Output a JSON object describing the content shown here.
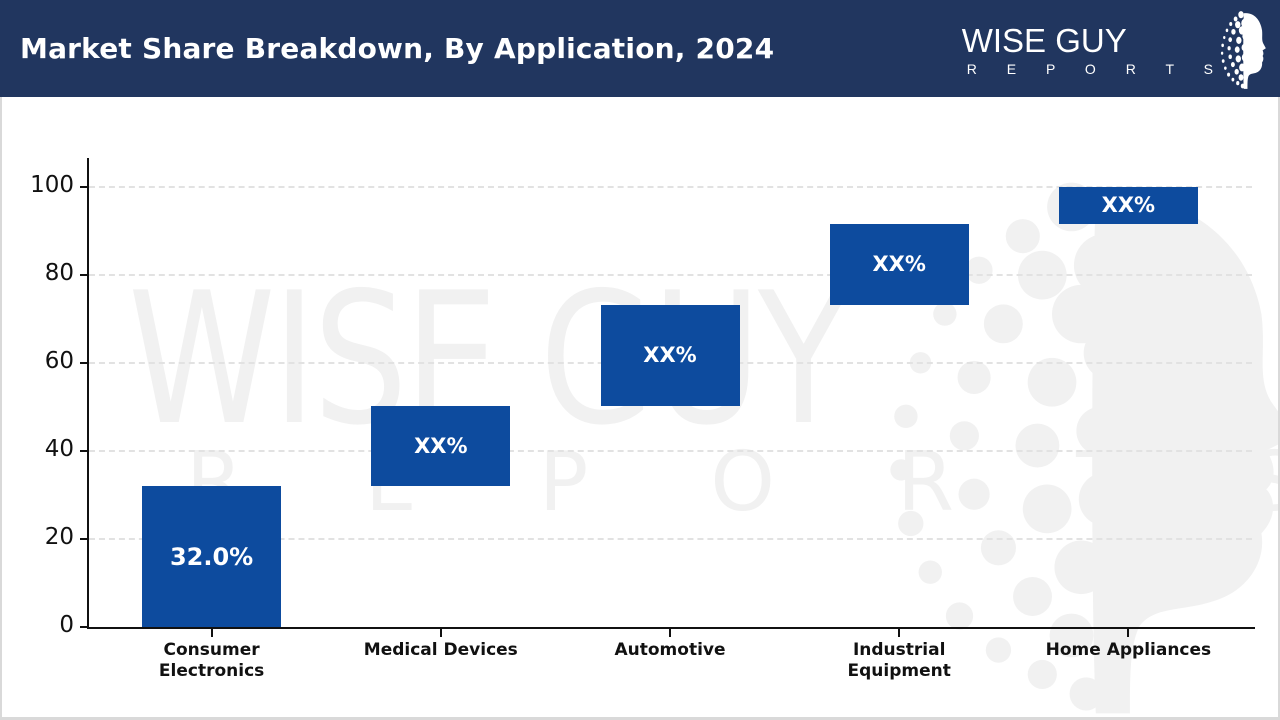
{
  "header": {
    "title": "Market Share Breakdown, By Application, 2024",
    "logo": {
      "wordmark": "WISE GUY",
      "reports": "R E P O R T S"
    }
  },
  "watermark": {
    "wordmark": "WISE GUY",
    "reports": "R E P O R T S"
  },
  "colors": {
    "header_bg": "#21365F",
    "bar_blue": "#0D4B9E",
    "grid": "#E2E2E2",
    "watermark": "#F1F1F1",
    "axis_text": "#111111",
    "value_label": "#FFFFFF",
    "page_border": "#D9D9D9"
  },
  "chart_data": {
    "type": "bar",
    "subtype": "floating-waterfall",
    "title": "Market Share Breakdown, By Application, 2024",
    "categories": [
      [
        "Consumer",
        "Electronics"
      ],
      [
        "Medical Devices"
      ],
      [
        "Automotive"
      ],
      [
        "Industrial",
        "Equipment"
      ],
      [
        "Home Appliances"
      ]
    ],
    "segments": [
      {
        "name": "Consumer Electronics",
        "from": 0,
        "to": 32,
        "label": "32.0%"
      },
      {
        "name": "Medical Devices",
        "from": 32,
        "to": 50.3,
        "label": "XX%"
      },
      {
        "name": "Automotive",
        "from": 50.3,
        "to": 73.2,
        "label": "XX%"
      },
      {
        "name": "Industrial Equipment",
        "from": 73.2,
        "to": 91.6,
        "label": "XX%"
      },
      {
        "name": "Home Appliances",
        "from": 91.6,
        "to": 100,
        "label": "XX%"
      }
    ],
    "yticks": [
      0,
      20,
      40,
      60,
      80,
      100
    ],
    "ylim": [
      0,
      106
    ],
    "xlabel": "",
    "ylabel": "",
    "grid": "horizontal-dashed",
    "legend": "none",
    "bar_color": "#0D4B9E",
    "value_label_color": "#FFFFFF"
  }
}
